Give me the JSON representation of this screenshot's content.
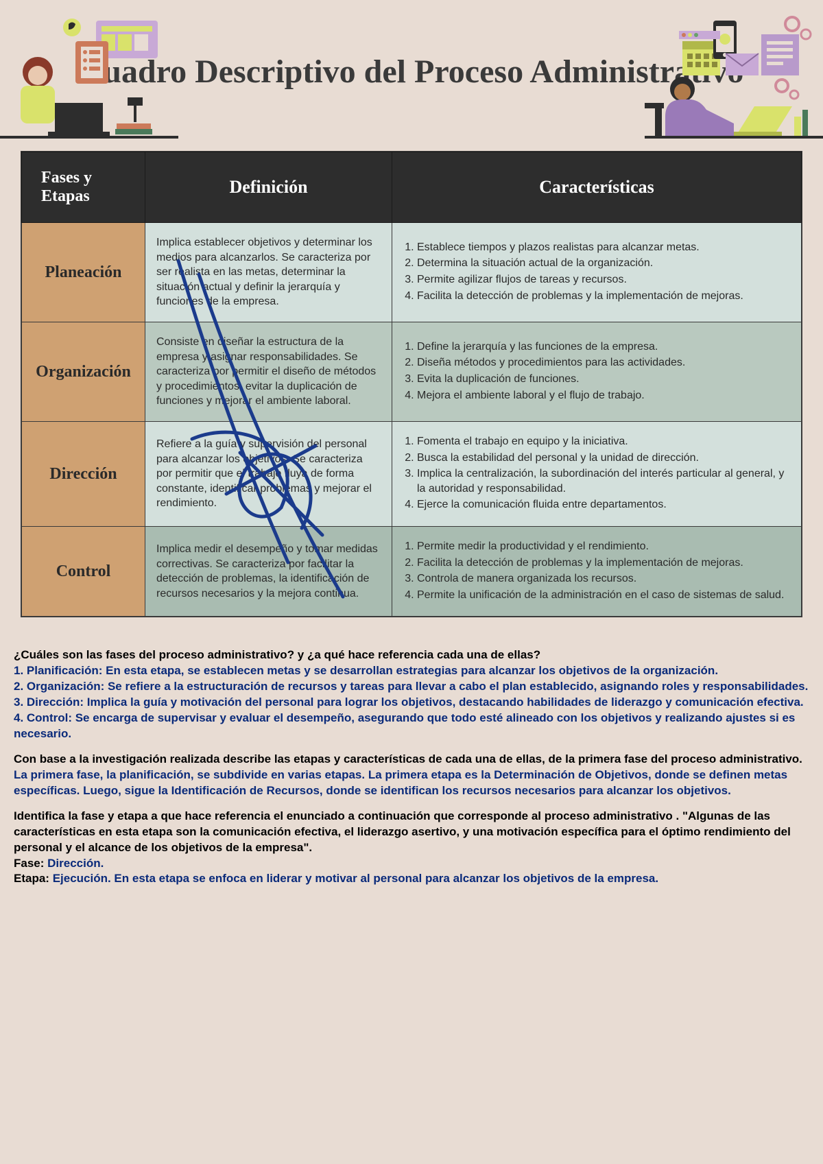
{
  "title": "Cuadro Descriptivo del Proceso Administrativo",
  "colors": {
    "bg": "#e8dcd3",
    "header_bg": "#2d2d2d",
    "header_text": "#ffffff",
    "phase_bg": "#cfa172",
    "cell_light": "#d3e0dc",
    "cell_mid": "#b9c9bf",
    "cell_dark": "#a9bcb1",
    "answer_blue": "#0a2a7a",
    "signature": "#1b3b8c"
  },
  "headers": {
    "phases": "Fases y Etapas",
    "definition": "Definición",
    "characteristics": "Características"
  },
  "rows": [
    {
      "phase": "Planeación",
      "definition": "Implica establecer objetivos y determinar los medios para alcanzarlos. Se caracteriza por ser realista en las metas, determinar la situación actual y definir la jerarquía y funciones de la empresa.",
      "characteristics": [
        "Establece tiempos y plazos realistas para alcanzar metas.",
        "Determina la situación actual de la organización.",
        "Permite agilizar flujos de tareas y recursos.",
        "Facilita la detección de problemas y la implementación de mejoras."
      ],
      "shade": "light"
    },
    {
      "phase": "Organización",
      "definition": "Consiste en diseñar la estructura de la empresa y asignar responsabilidades. Se caracteriza por permitir el diseño de métodos y procedimientos, evitar la duplicación de funciones y mejorar el ambiente laboral.",
      "characteristics": [
        "Define la jerarquía y las funciones de la empresa.",
        "Diseña métodos y procedimientos para las actividades.",
        "Evita la duplicación de funciones.",
        "Mejora el ambiente laboral y el flujo de trabajo."
      ],
      "shade": "mid"
    },
    {
      "phase": "Dirección",
      "definition": "Refiere a la guía y supervisión del personal para alcanzar los objetivos. Se caracteriza por permitir que el trabajo fluya de forma constante, identificar problemas y mejorar el rendimiento.",
      "characteristics": [
        "Fomenta el trabajo en equipo y la iniciativa.",
        "Busca la estabilidad del personal y la unidad de dirección.",
        "Implica la centralización, la subordinación del interés particular al general, y la autoridad y responsabilidad.",
        "Ejerce la comunicación fluida entre departamentos."
      ],
      "shade": "light"
    },
    {
      "phase": "Control",
      "definition": "Implica medir el desempeño y tomar medidas correctivas. Se caracteriza por facilitar la detección de problemas, la identificación de recursos necesarios y la mejora continua.",
      "characteristics": [
        "Permite medir la productividad y el rendimiento.",
        "Facilita la detección de problemas y la implementación de mejoras.",
        "Controla de manera organizada los recursos.",
        "Permite la unificación de la administración en el caso de sistemas de salud."
      ],
      "shade": "dark"
    }
  ],
  "qa": {
    "q1": "¿Cuáles son las fases del proceso administrativo? y ¿a qué hace referencia cada una de ellas?",
    "a1": [
      "1. Planificación: En esta etapa, se establecen metas y se desarrollan estrategias para alcanzar los objetivos de la organización.",
      "2. Organización: Se refiere a la estructuración de recursos y tareas para llevar a cabo el plan establecido, asignando roles y responsabilidades.",
      "3. Dirección: Implica la guía y motivación del personal para lograr los objetivos, destacando habilidades de liderazgo y comunicación efectiva.",
      "4. Control: Se encarga de supervisar y evaluar el desempeño, asegurando que todo esté alineado con los objetivos y realizando ajustes si es necesario."
    ],
    "q2": "Con base a la investigación realizada describe las etapas y características de cada una de ellas, de la primera fase del proceso administrativo.",
    "a2": "La primera fase, la planificación, se subdivide en varias etapas. La primera etapa es la Determinación de Objetivos, donde se definen metas específicas. Luego, sigue la Identificación de Recursos, donde se identifican los recursos necesarios para alcanzar los objetivos.",
    "q3": "Identifica la fase y etapa a que hace referencia el enunciado a continuación que corresponde al proceso administrativo . \"Algunas de las características en esta etapa son la comunicación efectiva, el liderazgo asertivo, y una motivación específica para el óptimo rendimiento del personal y el alcance de los objetivos de la empresa\".",
    "q3_fase_label": "Fase: ",
    "q3_fase": "Dirección.",
    "q3_etapa_label": "Etapa: ",
    "q3_etapa": "Ejecución. En esta etapa se enfoca en liderar y motivar al personal para alcanzar los objetivos de la empresa."
  }
}
